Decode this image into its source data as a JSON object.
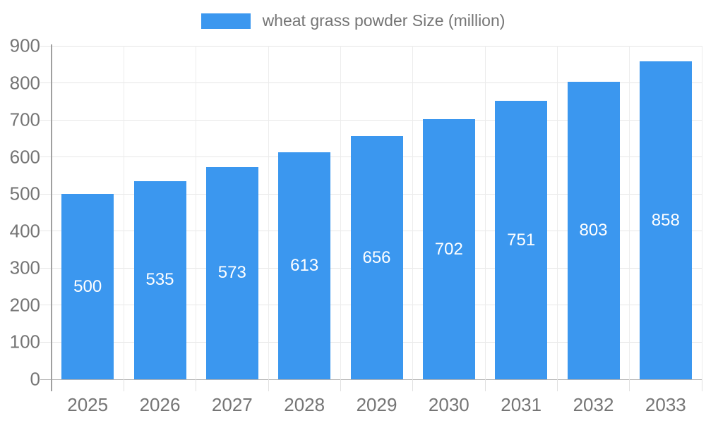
{
  "legend": {
    "label": "wheat grass powder Size (million)"
  },
  "colors": {
    "bar": "#3b97ef",
    "bar_label_text": "#ffffff",
    "axis_text": "#757575",
    "gridline": "#e6e6e6",
    "axis_line": "#a0a0a0"
  },
  "chart_data": {
    "type": "bar",
    "title": "wheat grass powder Size (million)",
    "series": [
      {
        "name": "wheat grass powder Size (million)",
        "values": [
          500,
          535,
          573,
          613,
          656,
          702,
          751,
          803,
          858
        ]
      }
    ],
    "categories": [
      "2025",
      "2026",
      "2027",
      "2028",
      "2029",
      "2030",
      "2031",
      "2032",
      "2033"
    ],
    "values": [
      500,
      535,
      573,
      613,
      656,
      702,
      751,
      803,
      858
    ],
    "bar_value_labels": [
      "500",
      "535",
      "573",
      "613",
      "656",
      "702",
      "751",
      "803",
      "858"
    ],
    "xlabel": "",
    "ylabel": "",
    "ylim": [
      0,
      900
    ],
    "yticks": [
      0,
      100,
      200,
      300,
      400,
      500,
      600,
      700,
      800,
      900
    ],
    "grid": true,
    "vertical_category_gridlines": true,
    "legend_position": "top-center",
    "bar_color": "#3b97ef",
    "bar_label_color": "#ffffff",
    "axis_text_color": "#757575"
  }
}
